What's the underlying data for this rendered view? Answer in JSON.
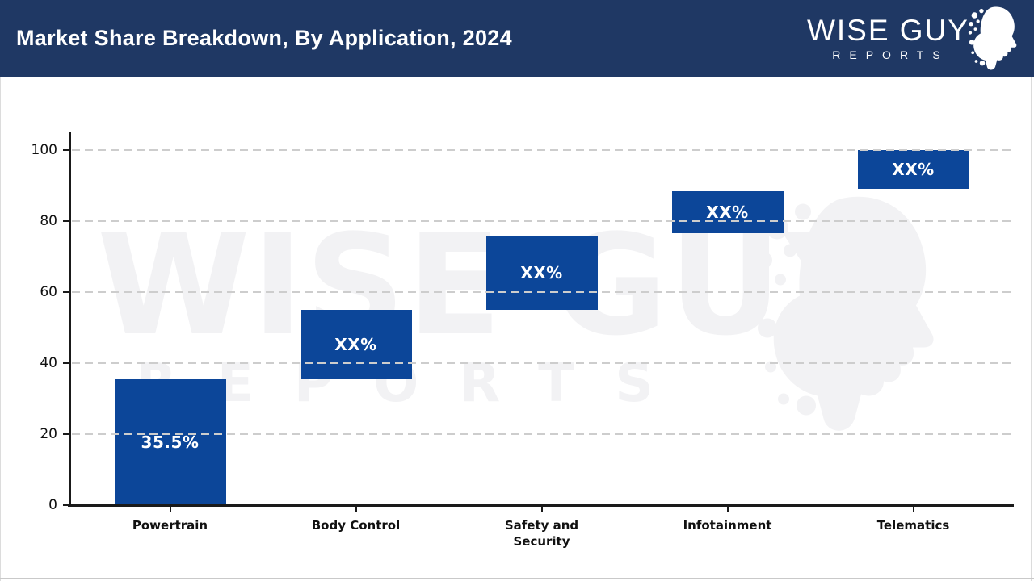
{
  "header": {
    "title": "Market Share Breakdown, By Application, 2024",
    "bg_color": "#1f3864",
    "logo": {
      "line1": "WISE GUY",
      "line2": "REPORTS",
      "head_icon": "dotted-head-profile"
    }
  },
  "watermark": {
    "line1": "WISE GUY",
    "line2": "REPORTS",
    "head_icon": "dotted-head-profile",
    "color": "#f2f2f4"
  },
  "chart_data": {
    "type": "bar",
    "subtype": "floating-waterfall",
    "title": "Market Share Breakdown, By Application, 2024",
    "categories": [
      "Powertrain",
      "Body Control",
      "Safety and Security",
      "Infotainment",
      "Telematics"
    ],
    "bars": [
      {
        "category": "Powertrain",
        "start": 0,
        "end": 35.5,
        "label": "35.5%"
      },
      {
        "category": "Body Control",
        "start": 35.5,
        "end": 55,
        "label": "XX%"
      },
      {
        "category": "Safety and Security",
        "start": 55,
        "end": 76,
        "label": "XX%"
      },
      {
        "category": "Infotainment",
        "start": 76.5,
        "end": 88.5,
        "label": "XX%"
      },
      {
        "category": "Telematics",
        "start": 89,
        "end": 100,
        "label": "XX%"
      }
    ],
    "ylim": [
      0,
      100
    ],
    "yticks": [
      0,
      20,
      40,
      60,
      80,
      100
    ],
    "xlabel": "",
    "ylabel": "",
    "grid": "horizontal-dashed-over-bars",
    "legend": "none",
    "bar_color": "#0c4699",
    "axis_color": "#1a1a1a",
    "gridline_color": "#cdcdcd"
  }
}
